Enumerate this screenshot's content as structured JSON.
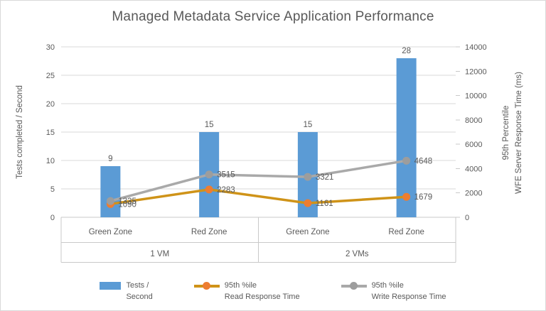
{
  "title": "Managed Metadata Service Application Performance",
  "colors": {
    "bar": "#5b9bd5",
    "read_line": "#cf9318",
    "read_marker": "#ed7d31",
    "write_line": "#a9a9a9",
    "write_marker": "#9d9d9d",
    "grid": "#d9d9d9",
    "frame": "#c9c9c9",
    "text": "#595959"
  },
  "chart_data": {
    "type": "combo-bar-line",
    "title": "Managed Metadata Service Application Performance",
    "categories": [
      "Green Zone",
      "Red Zone",
      "Green Zone",
      "Red Zone"
    ],
    "groups": [
      {
        "label": "1 VM",
        "span": 2
      },
      {
        "label": "2 VMs",
        "span": 2
      }
    ],
    "left_axis": {
      "title": "Tests completed / Second",
      "min": 0,
      "max": 30,
      "step": 5,
      "ticks": [
        0,
        5,
        10,
        15,
        20,
        25,
        30
      ]
    },
    "right_axis": {
      "title_lines": [
        "95th Percentile",
        "WFE Server Response Time (ms)"
      ],
      "min": 0,
      "max": 14000,
      "step": 2000,
      "ticks": [
        0,
        2000,
        4000,
        6000,
        8000,
        10000,
        12000,
        14000
      ]
    },
    "series": [
      {
        "name": "Tests / Second",
        "type": "bar",
        "axis": "left",
        "color_key": "bar",
        "values": [
          9,
          15,
          15,
          28
        ]
      },
      {
        "name": "95th %ile Read Response Time",
        "type": "line",
        "axis": "right",
        "color_key": "read_line",
        "marker_color_key": "read_marker",
        "values": [
          1090,
          2283,
          1161,
          1679
        ]
      },
      {
        "name": "95th %ile Write Response Time",
        "type": "line",
        "axis": "right",
        "color_key": "write_line",
        "marker_color_key": "write_marker",
        "values": [
          1335,
          3515,
          3321,
          4648
        ]
      }
    ],
    "legend": [
      {
        "lines": [
          "Tests /",
          "Second"
        ]
      },
      {
        "lines": [
          "95th %ile",
          "Read Response Time"
        ]
      },
      {
        "lines": [
          "95th %ile",
          "Write Response Time"
        ]
      }
    ],
    "grid": "horizontal",
    "legend_position": "bottom"
  }
}
